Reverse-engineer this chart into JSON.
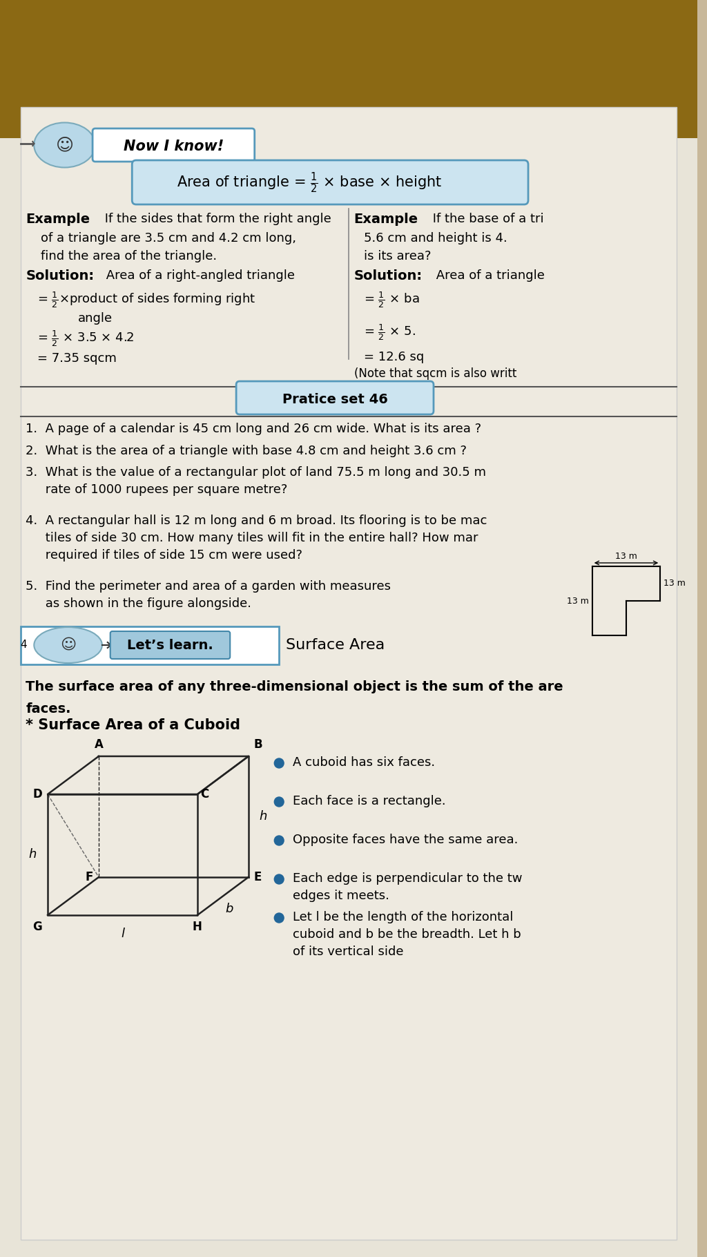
{
  "bg_color": "#c8b89a",
  "paper_color": "#edeae0",
  "title_banner": "Now I know!",
  "formula_text": "Area of triangle = ",
  "formula_rest": " × base × height",
  "example1_header": "Example",
  "example1_text1": " If the sides that form the right angle",
  "example1_text2": "of a triangle are 3.5 cm and 4.2 cm long,",
  "example1_text3": "find the area of the triangle.",
  "example1_sol_label": "Solution:",
  "example1_sol1": " Area of a right-angled triangle",
  "example1_sol2a": "= ",
  "example1_sol2b": "×product of sides forming right",
  "example1_sol3": "angle",
  "example1_sol4a": "= ",
  "example1_sol4b": "× 3.5 × 4.2",
  "example1_sol5": "= 7.35 sqcm",
  "example2_header": "Example",
  "example2_text1": " If the base of a tri",
  "example2_text2": "5.6 cm and height is 4.",
  "example2_text3": "is its area?",
  "example2_sol_label": "Solution:",
  "example2_sol1": " Area of a triangle",
  "example2_sol2a": "= ",
  "example2_sol2b": "× ba",
  "example2_sol3a": "= ",
  "example2_sol3b": "× 5.",
  "example2_sol4": "= 12.6 sq",
  "example2_sol5": "(Note that sqcm is also writt",
  "practice_header": "Pratice set 46",
  "practice_items": [
    "1.  A page of a calendar is 45 cm long and 26 cm wide. What is its area ?",
    "2.  What is the area of a triangle with base 4.8 cm and height 3.6 cm ?",
    "3.  What is the value of a rectangular plot of land 75.5 m long and 30.5 m\n     rate of 1000 rupees per square metre?",
    "4.  A rectangular hall is 12 m long and 6 m broad. Its flooring is to be mac\n     tiles of side 30 cm. How many tiles will fit in the entire hall? How mar\n     required if tiles of side 15 cm were used?",
    "5.  Find the perimeter and area of a garden with measures\n     as shown in the figure alongside."
  ],
  "lets_learn_label": "Let’s learn.",
  "lets_learn_subject": "Surface Area",
  "surface_text1": "The surface area of any three-dimensional object is the sum of the are",
  "surface_text2": "faces.",
  "cuboid_header": "* Surface Area of a Cuboid",
  "cuboid_labels": [
    "A",
    "B",
    "C",
    "D",
    "E",
    "F",
    "G",
    "H"
  ],
  "cuboid_dim_labels": [
    "h",
    "h",
    "b",
    "l"
  ],
  "cuboid_bullets": [
    "A cuboid has six faces.",
    "Each face is a rectangle.",
    "Opposite faces have the same area.",
    "Each edge is perpendicular to the tw\nedges it meets.",
    "Let l be the length of the horizontal\ncuboid and b be the breadth. Let h b\nof its vertical side"
  ]
}
